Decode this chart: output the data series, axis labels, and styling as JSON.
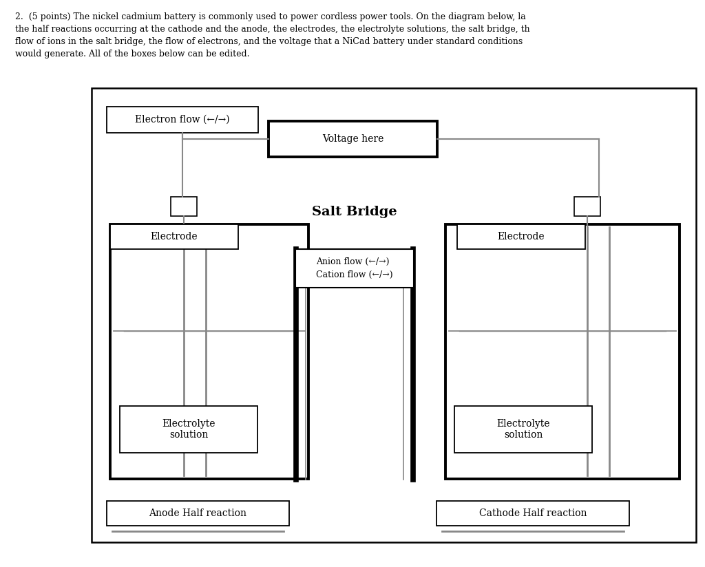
{
  "electron_flow_label": "Electron flow (←/→)",
  "voltage_label": "Voltage here",
  "salt_bridge_label": "Salt Bridge",
  "anion_cation_label": "Anion flow (←/→)\nCation flow (←/→)",
  "electrode_label": "Electrode",
  "electrolyte_label": "Electrolyte\nsolution",
  "anode_label": "Anode Half reaction",
  "cathode_label": "Cathode Half reaction",
  "bg_color": "#ffffff",
  "gray_color": "#888888",
  "header_line1": "2.  (5 points) The nickel cadmium battery is commonly used to power cordless power tools. On the diagram below, la",
  "header_line2": "the half reactions occurring at the cathode and the anode, the electrodes, the electrolyte solutions, the salt bridge, th",
  "header_line3": "flow of ions in the salt bridge, the flow of electrons, and the voltage that a NiCad battery under standard conditions",
  "header_line4": "would generate. All of the boxes below can be edited."
}
